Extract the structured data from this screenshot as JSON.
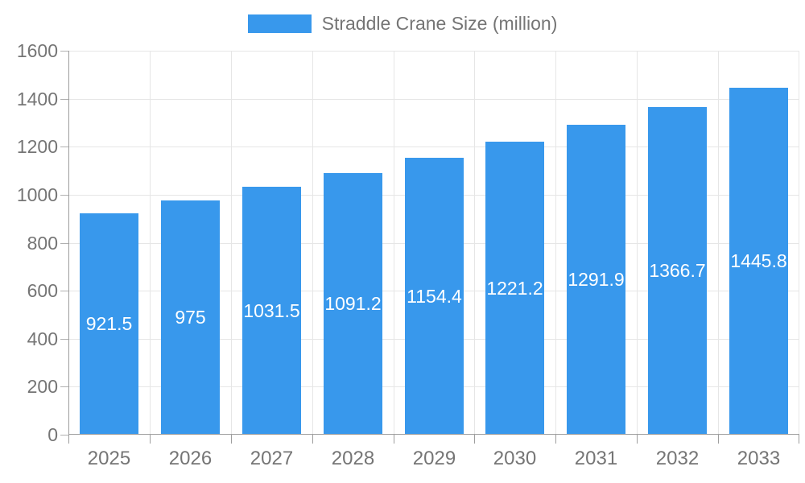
{
  "chart_data": {
    "type": "bar",
    "categories": [
      "2025",
      "2026",
      "2027",
      "2028",
      "2029",
      "2030",
      "2031",
      "2032",
      "2033"
    ],
    "series": [
      {
        "name": "Straddle Crane Size (million)",
        "values": [
          921.5,
          975,
          1031.5,
          1091.2,
          1154.4,
          1221.2,
          1291.9,
          1366.7,
          1445.8
        ],
        "color": "#3898ec"
      }
    ],
    "value_labels": [
      "921.5",
      "975",
      "1031.5",
      "1091.2",
      "1154.4",
      "1221.2",
      "1291.9",
      "1366.7",
      "1445.8"
    ],
    "xlabel": "",
    "ylabel": "",
    "ylim": [
      0,
      1600
    ],
    "yticks": [
      0,
      200,
      400,
      600,
      800,
      1000,
      1200,
      1400,
      1600
    ],
    "grid": true,
    "legend_position": "top-center",
    "value_label_color": "#ffffff"
  },
  "colors": {
    "bar": "#3898ec",
    "axis_line": "#9e9e9e",
    "gridline": "#e6e6e6",
    "tick": "#b0b0b0",
    "axis_label": "#757575",
    "value_label": "#ffffff",
    "background": "#ffffff"
  }
}
